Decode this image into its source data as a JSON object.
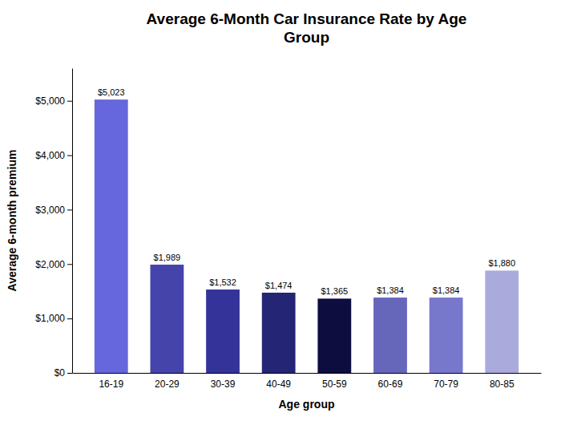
{
  "chart_data": {
    "type": "bar",
    "title": "Average 6-Month Car Insurance Rate by Age\nGroup",
    "xlabel": "Age group",
    "ylabel": "Average 6-month premium",
    "categories": [
      "16-19",
      "20-29",
      "30-39",
      "40-49",
      "50-59",
      "60-69",
      "70-79",
      "80-85"
    ],
    "values": [
      5023,
      1989,
      1532,
      1474,
      1365,
      1384,
      1384,
      1880
    ],
    "value_labels": [
      "$5,023",
      "$1,989",
      "$1,532",
      "$1,474",
      "$1,365",
      "$1,384",
      "$1,384",
      "$1,880"
    ],
    "data_labels": true,
    "colors": [
      "#6666DD",
      "#4444AA",
      "#333399",
      "#252575",
      "#0D0D40",
      "#6666BB",
      "#7777CC",
      "#AAAADD"
    ],
    "ylim": [
      0,
      5600
    ],
    "yticks": [
      {
        "value": 0,
        "label": "$0"
      },
      {
        "value": 1000,
        "label": "$1,000"
      },
      {
        "value": 2000,
        "label": "$2,000"
      },
      {
        "value": 3000,
        "label": "$3,000"
      },
      {
        "value": 4000,
        "label": "$4,000"
      },
      {
        "value": 5000,
        "label": "$5,000"
      }
    ],
    "grid": false
  }
}
